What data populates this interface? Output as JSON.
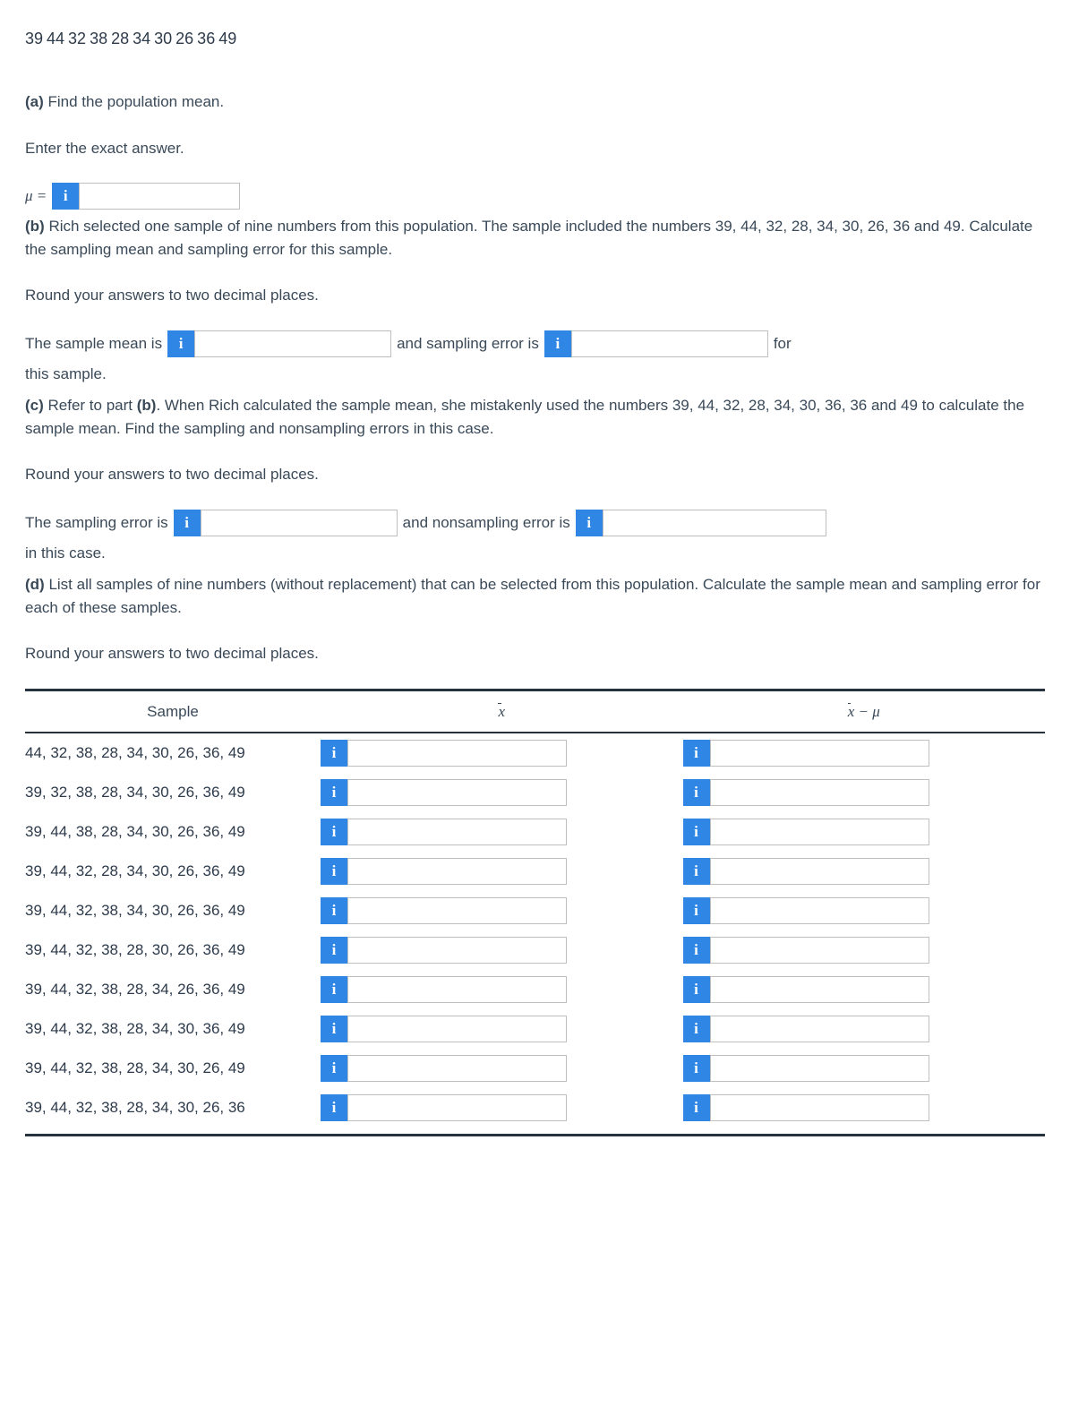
{
  "colors": {
    "text": "#3a4958",
    "accent": "#2f86e4",
    "input_border": "#bfbfbf",
    "table_border": "#26323e",
    "background": "#ffffff"
  },
  "data_line": "39 44 32 38 28 34 30 26 36 49",
  "part_a": {
    "prompt_bold": "(a)",
    "prompt_text": " Find the population mean.",
    "enter_line": "Enter the exact answer.",
    "mu_label": "μ ="
  },
  "part_b": {
    "bold": "(b)",
    "text1": " Rich selected one sample of nine numbers from this population. The sample included the numbers 39, 44, 32, 28, 34, 30, 26, 36 and 49. Calculate the sampling mean and sampling error for this sample.",
    "round": "Round your answers to two decimal places.",
    "lead1": "The sample mean is",
    "mid": "and sampling error is",
    "tail": "for",
    "tail2": "this sample."
  },
  "part_c": {
    "bold": "(c)",
    "ref_bold": "(b)",
    "text1a": " Refer to part ",
    "text1b": ". When Rich calculated the sample mean, she mistakenly used the numbers 39, 44, 32, 28, 34, 30, 36, 36 and 49 to calculate the sample mean. Find the sampling and nonsampling errors in this case.",
    "round": "Round your answers to two decimal places.",
    "lead1": "The sampling error is",
    "mid": "and nonsampling error is",
    "tail2": "in this case."
  },
  "part_d": {
    "bold": "(d)",
    "text1": " List all samples of nine numbers (without replacement) that can be selected from this population. Calculate the sample mean and sampling error for each of these samples.",
    "round": "Round your answers to two decimal places."
  },
  "table": {
    "headers": {
      "sample": "Sample",
      "xbar": "x",
      "diff_prefix": "x",
      "diff_suffix": " − μ"
    },
    "rows": [
      "44, 32, 38, 28, 34, 30, 26, 36, 49",
      "39, 32, 38, 28, 34, 30, 26, 36, 49",
      "39, 44, 38, 28, 34, 30, 26, 36, 49",
      "39, 44, 32, 28, 34, 30, 26, 36, 49",
      "39, 44, 32, 38, 34, 30, 26, 36, 49",
      "39, 44, 32, 38, 28, 30, 26, 36, 49",
      "39, 44, 32, 38, 28, 34, 26, 36, 49",
      "39, 44, 32, 38, 28, 34, 30, 36, 49",
      "39, 44, 32, 38, 28, 34, 30, 26, 49",
      "39, 44, 32, 38, 28, 34, 30, 26, 36"
    ]
  },
  "info_glyph": "i"
}
